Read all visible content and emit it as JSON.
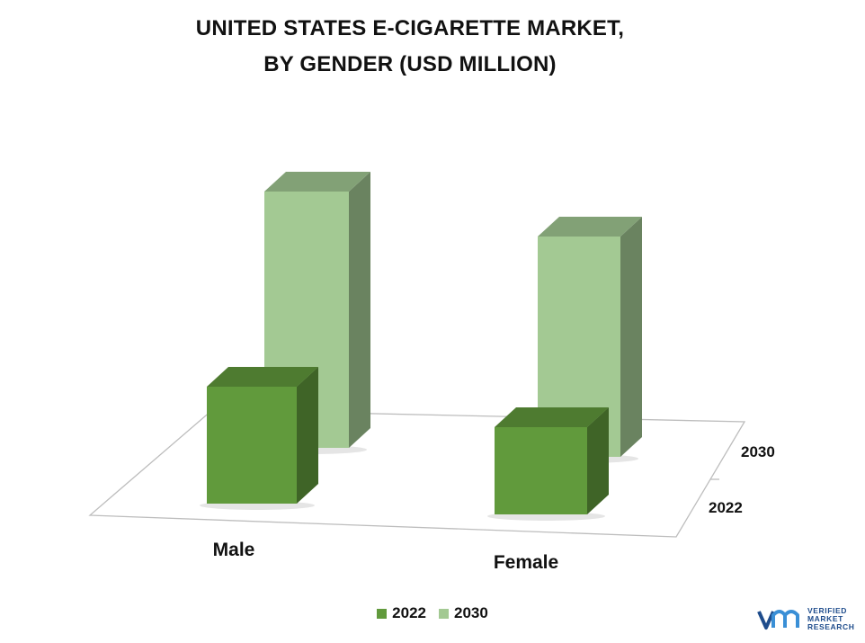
{
  "title_line1": "UNITED STATES E-CIGARETTE MARKET,",
  "title_line2": "BY GENDER (USD MILLION)",
  "chart_data": {
    "type": "bar",
    "categories": [
      "Male",
      "Female"
    ],
    "series": [
      {
        "name": "2022",
        "values": [
          130,
          97
        ],
        "color": "#619a3c"
      },
      {
        "name": "2030",
        "values": [
          285,
          245
        ],
        "color": "#a3c993"
      }
    ],
    "depth_labels": [
      "2022",
      "2030"
    ],
    "legend_position": "bottom",
    "grid": false,
    "three_d": true
  },
  "legend": {
    "items": [
      {
        "label": "2022",
        "color": "#619a3c"
      },
      {
        "label": "2030",
        "color": "#a3c993"
      }
    ]
  },
  "logo": {
    "line1": "VERIFIED",
    "line2": "MARKET",
    "line3": "RESEARCH",
    "color": "#1e4c8c"
  }
}
